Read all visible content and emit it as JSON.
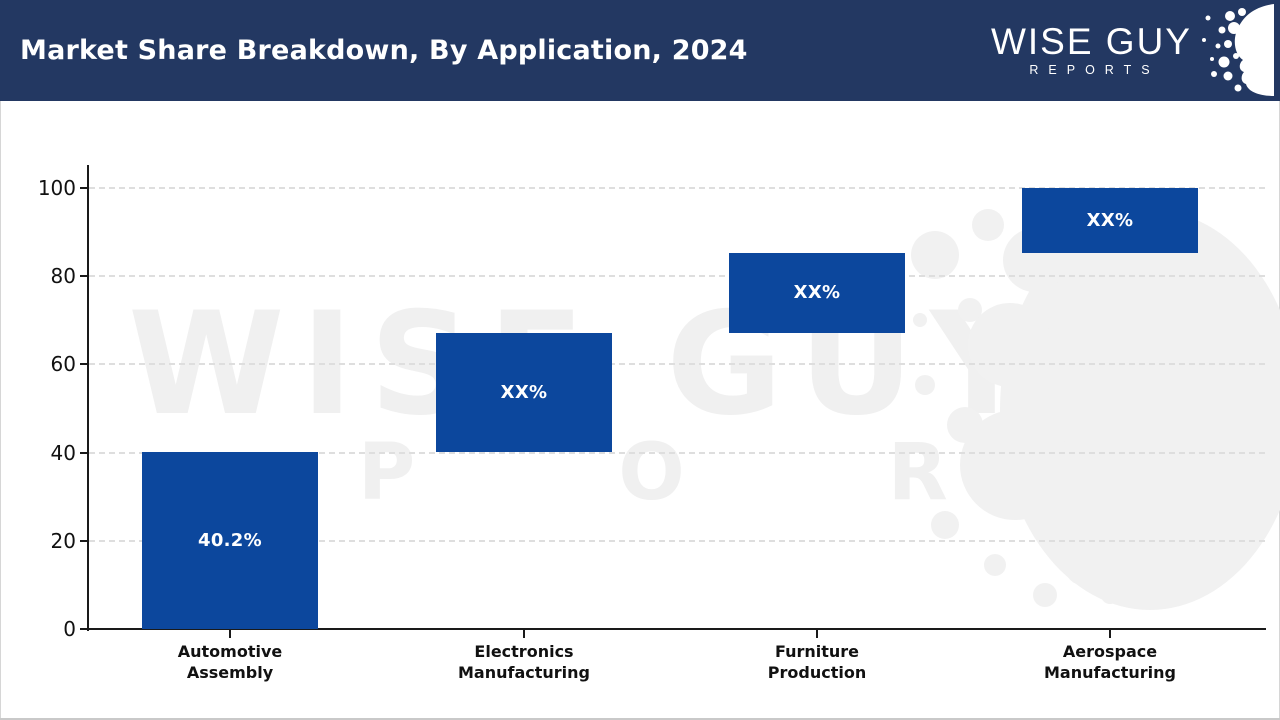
{
  "header": {
    "title": "Market Share Breakdown, By Application, 2024",
    "bg_color": "#233862",
    "logo": {
      "line1": "WISE GUY",
      "line2": "REPORTS"
    }
  },
  "watermark": {
    "line1": "WISE GUY",
    "line2": "P O R T S"
  },
  "chart_data": {
    "type": "bar",
    "variant": "waterfall",
    "title": "Market Share Breakdown, By Application, 2024",
    "categories": [
      "Automotive Assembly",
      "Electronics Manufacturing",
      "Furniture Production",
      "Aerospace Manufacturing"
    ],
    "bars": [
      {
        "start": 0,
        "end": 40.2,
        "label": "40.2%"
      },
      {
        "start": 40.2,
        "end": 67.2,
        "label": "XX%"
      },
      {
        "start": 67.2,
        "end": 85.2,
        "label": "XX%"
      },
      {
        "start": 85.2,
        "end": 100,
        "label": "XX%"
      }
    ],
    "ylim": [
      0,
      100
    ],
    "yticks": [
      0,
      20,
      40,
      60,
      80,
      100
    ],
    "grid": "horizontal-dashed",
    "legend": "none",
    "bar_color": "#0c479d",
    "bar_label_color": "#ffffff"
  }
}
